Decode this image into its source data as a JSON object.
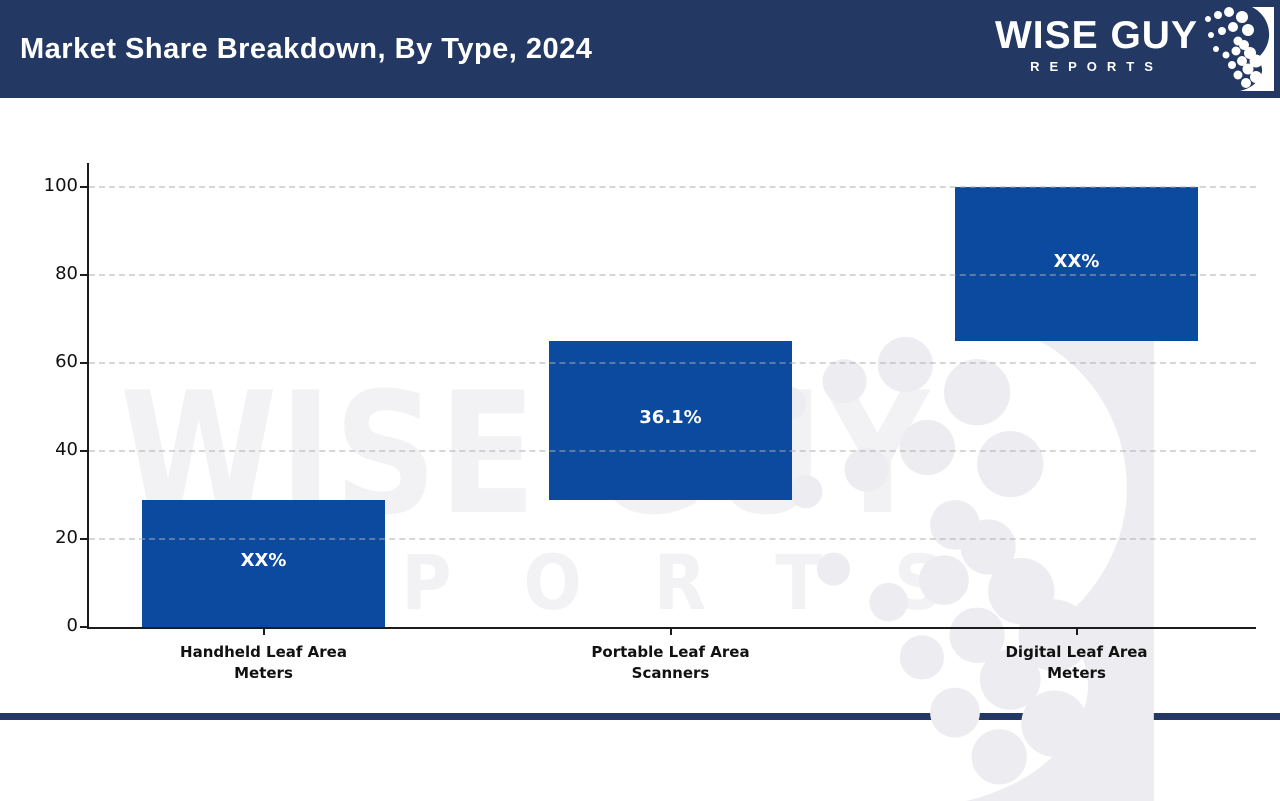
{
  "header": {
    "title": "Market Share Breakdown, By Type, 2024",
    "logo": {
      "line1": "WISE GUY",
      "line2": "REPORTS"
    }
  },
  "watermark": {
    "line1": "WISE GUY",
    "line2": "REPORTS"
  },
  "chart_data": {
    "type": "bar",
    "subtype": "waterfall",
    "title": "Market Share Breakdown, By Type, 2024",
    "categories": [
      "Handheld Leaf Area\nMeters",
      "Portable Leaf Area\nScanners",
      "Digital Leaf Area\nMeters"
    ],
    "bars": [
      {
        "category": "Handheld Leaf Area Meters",
        "start": 0,
        "end": 28.9,
        "value": 28.9,
        "label": "XX%"
      },
      {
        "category": "Portable Leaf Area Scanners",
        "start": 28.9,
        "end": 65.0,
        "value": 36.1,
        "label": "36.1%"
      },
      {
        "category": "Digital Leaf Area Meters",
        "start": 65.0,
        "end": 100.0,
        "value": 35.0,
        "label": "XX%"
      }
    ],
    "ylim": [
      0,
      100
    ],
    "yticks": [
      0,
      20,
      40,
      60,
      80,
      100
    ],
    "xlabel": "",
    "ylabel": "",
    "legend": "none",
    "grid": {
      "axis": "y",
      "style": "dashed",
      "drawn_over_bars": true
    },
    "bar_color": "#0b4a9f",
    "bar_label_color": "#ffffff",
    "axis_color": "#1c1c1c",
    "header_bg": "#233862",
    "footer_bg": "#233862",
    "watermark_color": "#f2f2f4"
  }
}
